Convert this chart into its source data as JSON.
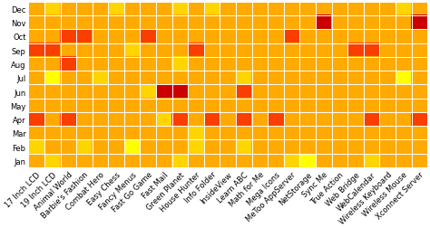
{
  "columns": [
    "17 Inch LCD",
    "19 Inch LCD",
    "Animal World",
    "Barbie's Fashion",
    "Combat Hero",
    "Easy Chess",
    "Fancy Menus",
    "Fast Go Game",
    "Fast Mail",
    "Green Planet",
    "House Hunter",
    "Info Folder",
    "InsideView",
    "Learn ABC",
    "Math for Me",
    "Mega Icons",
    "MeToo AppServer",
    "NetStorage",
    "Sync Me",
    "True Action",
    "Web Bridge",
    "WebCalendar",
    "Wireless Keyboard",
    "Wireless Mouse",
    "Xconnect Server"
  ],
  "rows": [
    "Jan",
    "Feb",
    "Mar",
    "Apr",
    "May",
    "Jun",
    "Jul",
    "Aug",
    "Sep",
    "Oct",
    "Nov",
    "Dec"
  ],
  "data": [
    [
      3,
      2,
      3,
      3,
      3,
      3,
      3,
      3,
      3,
      2,
      3,
      3,
      3,
      3,
      3,
      3,
      2,
      1,
      3,
      3,
      3,
      2,
      3,
      3,
      3
    ],
    [
      2,
      3,
      3,
      2,
      3,
      3,
      1,
      3,
      3,
      3,
      2,
      3,
      3,
      2,
      3,
      3,
      3,
      3,
      3,
      3,
      3,
      3,
      3,
      3,
      3
    ],
    [
      3,
      3,
      3,
      3,
      3,
      3,
      3,
      3,
      3,
      3,
      2,
      3,
      3,
      3,
      3,
      3,
      3,
      3,
      3,
      3,
      3,
      3,
      3,
      3,
      3
    ],
    [
      5,
      3,
      5,
      3,
      3,
      3,
      3,
      3,
      2,
      5,
      3,
      5,
      3,
      5,
      3,
      5,
      3,
      3,
      3,
      3,
      3,
      5,
      3,
      3,
      5
    ],
    [
      3,
      3,
      3,
      3,
      3,
      3,
      3,
      3,
      3,
      3,
      3,
      3,
      3,
      3,
      3,
      3,
      3,
      3,
      3,
      3,
      3,
      3,
      3,
      3,
      3
    ],
    [
      3,
      3,
      3,
      3,
      3,
      3,
      3,
      2,
      7,
      7,
      3,
      3,
      3,
      5,
      3,
      3,
      3,
      3,
      3,
      3,
      3,
      3,
      3,
      3,
      3
    ],
    [
      3,
      1,
      3,
      3,
      2,
      3,
      3,
      3,
      3,
      3,
      3,
      3,
      3,
      2,
      3,
      3,
      3,
      3,
      3,
      3,
      3,
      3,
      3,
      1,
      3
    ],
    [
      3,
      3,
      5,
      3,
      3,
      3,
      3,
      3,
      3,
      2,
      3,
      3,
      3,
      3,
      3,
      3,
      3,
      3,
      3,
      3,
      3,
      3,
      3,
      3,
      3
    ],
    [
      5,
      5,
      3,
      3,
      3,
      3,
      2,
      3,
      3,
      3,
      5,
      3,
      3,
      3,
      3,
      3,
      3,
      3,
      3,
      3,
      5,
      5,
      3,
      3,
      3
    ],
    [
      3,
      3,
      5,
      5,
      3,
      3,
      3,
      5,
      3,
      3,
      3,
      3,
      3,
      3,
      3,
      3,
      5,
      3,
      3,
      3,
      3,
      3,
      3,
      3,
      3
    ],
    [
      3,
      3,
      3,
      3,
      3,
      3,
      3,
      3,
      3,
      3,
      3,
      3,
      3,
      3,
      3,
      3,
      3,
      3,
      7,
      3,
      3,
      3,
      3,
      3,
      7
    ],
    [
      3,
      2,
      3,
      3,
      3,
      2,
      3,
      3,
      3,
      2,
      3,
      2,
      3,
      3,
      3,
      3,
      3,
      3,
      3,
      3,
      3,
      3,
      3,
      2,
      3
    ]
  ],
  "colormap_stops": [
    [
      0.0,
      "#FFFF00"
    ],
    [
      0.2,
      "#FFCC00"
    ],
    [
      0.4,
      "#FF9900"
    ],
    [
      0.6,
      "#FF5500"
    ],
    [
      0.8,
      "#EE1100"
    ],
    [
      1.0,
      "#CC0000"
    ]
  ],
  "vmin": 1,
  "vmax": 7,
  "grid_color": "#FFFFFF",
  "background_color": "#FFFFFF",
  "tick_fontsize": 6.0,
  "figsize": [
    4.74,
    2.53
  ],
  "dpi": 100
}
